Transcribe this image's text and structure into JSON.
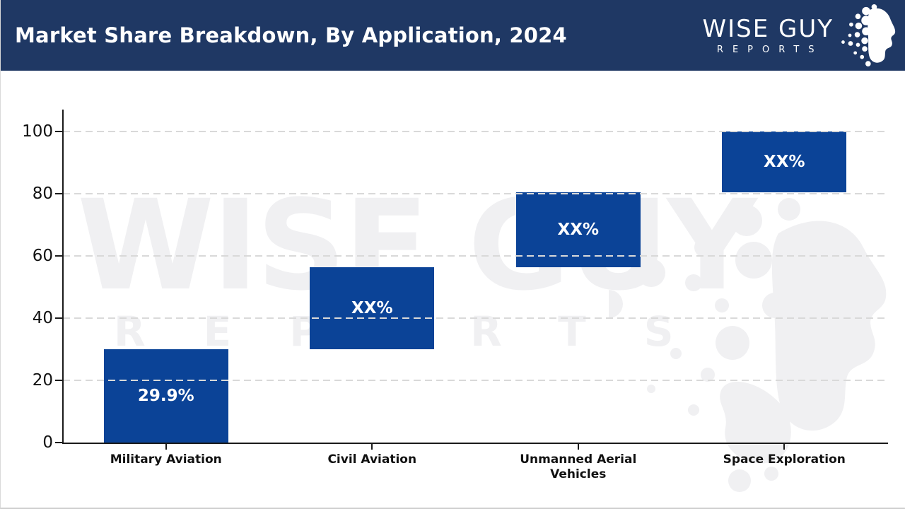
{
  "header": {
    "title": "Market Share Breakdown, By Application, 2024",
    "logo": {
      "line1": "WISE GUY",
      "line2": "REPORTS"
    }
  },
  "watermark": {
    "line1": "WISE GUY",
    "line2": "REPORTS"
  },
  "colors": {
    "header_bg": "#1f3864",
    "bar": "#0b4397",
    "bar_label": "#ffffff",
    "grid": "#d9d9d9",
    "axis": "#1a1a1a",
    "watermark": "#f0f0f2"
  },
  "chart_data": {
    "type": "bar",
    "subtype": "waterfall",
    "title": "Market Share Breakdown, By Application, 2024",
    "categories": [
      "Military Aviation",
      "Civil Aviation",
      "Unmanned Aerial Vehicles",
      "Space Exploration"
    ],
    "bars": [
      {
        "category": "Military Aviation",
        "start": 0,
        "end": 29.9,
        "label": "29.9%"
      },
      {
        "category": "Civil Aviation",
        "start": 29.9,
        "end": 56.4,
        "label": "XX%"
      },
      {
        "category": "Unmanned Aerial Vehicles",
        "start": 56.4,
        "end": 80.4,
        "label": "XX%"
      },
      {
        "category": "Space Exploration",
        "start": 80.4,
        "end": 100,
        "label": "XX%"
      }
    ],
    "xlabel": "",
    "ylabel": "",
    "ylim": [
      0,
      100
    ],
    "yticks": [
      0,
      20,
      40,
      60,
      80,
      100
    ],
    "grid": "horizontal-dashed",
    "legend": "none",
    "bar_value_labels_inside": true
  }
}
